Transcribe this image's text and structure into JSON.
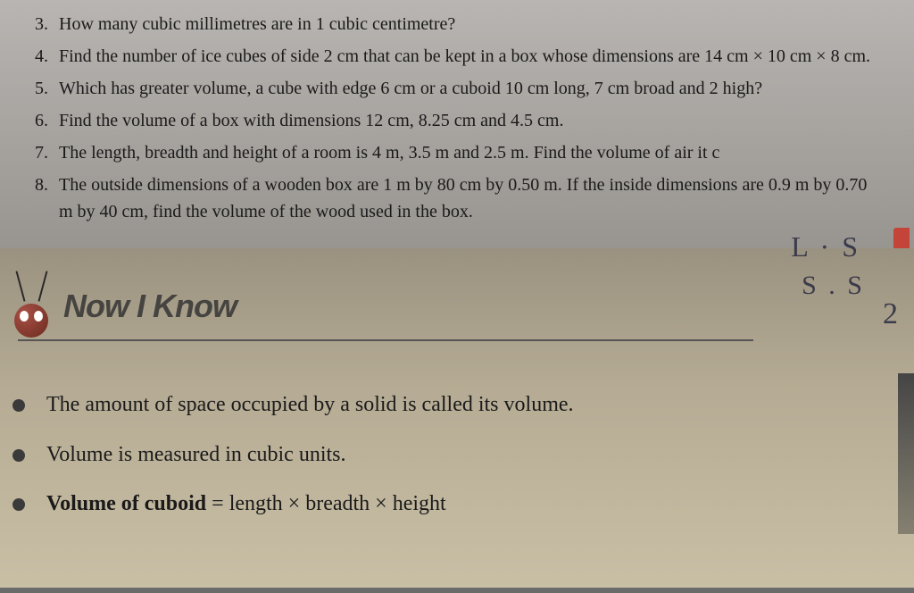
{
  "questions": [
    {
      "num": "3.",
      "text": "How many cubic millimetres are in 1 cubic centimetre?"
    },
    {
      "num": "4.",
      "text": "Find the number of ice cubes of side 2 cm that can be kept in a box whose dimensions are 14 cm × 10 cm × 8 cm."
    },
    {
      "num": "5.",
      "text": "Which has greater volume, a cube with edge 6 cm or a cuboid 10 cm long, 7 cm broad and 2 high?"
    },
    {
      "num": "6.",
      "text": "Find the volume of a box with dimensions 12 cm, 8.25 cm and 4.5 cm."
    },
    {
      "num": "7.",
      "text": "The length, breadth and height of a room is 4 m, 3.5 m and 2.5 m. Find the volume of air it c"
    },
    {
      "num": "8.",
      "text": "The outside dimensions of a wooden box are 1 m by 80 cm by 0.50 m. If the inside dimensions are 0.9 m by 0.70 m by 40 cm, find the volume of the wood used in the box."
    }
  ],
  "handwriting": {
    "line1": "L · S",
    "line2": "S . S",
    "line3": "2"
  },
  "section_title": "Now I Know",
  "facts": [
    {
      "text": "The amount of space occupied by a solid is called its volume."
    },
    {
      "text": "Volume is measured in cubic units."
    },
    {
      "text_prefix": "Volume of cuboid",
      "text_rest": " = length × breadth × height"
    }
  ],
  "colors": {
    "top_bg": "#a8a4a0",
    "bottom_bg": "#c9bfa5",
    "text": "#1a1a1a",
    "red_marker": "#c4443a",
    "ant": "#6b2a1f"
  }
}
